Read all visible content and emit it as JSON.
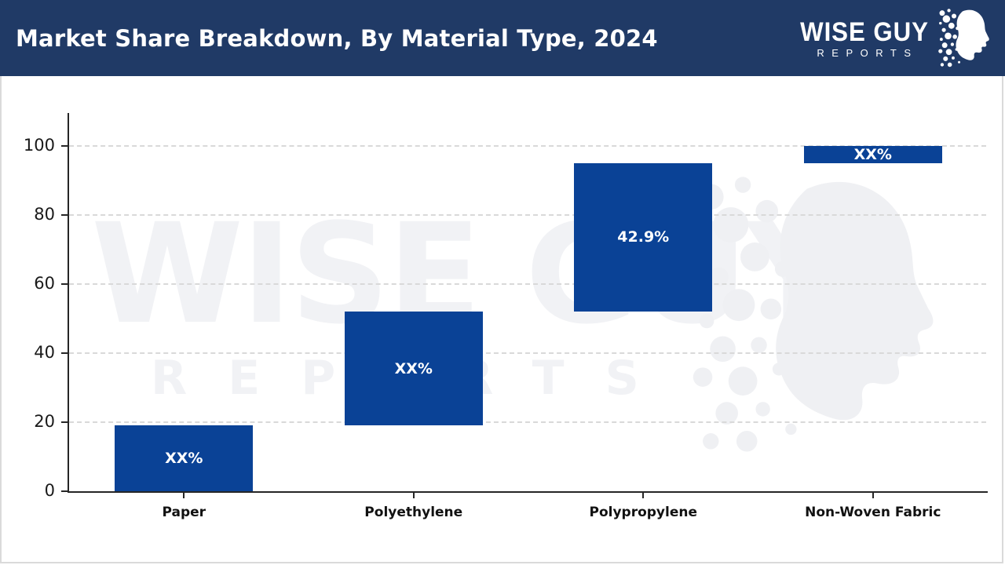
{
  "header": {
    "title": "Market Share Breakdown, By Material Type, 2024",
    "logo": {
      "line1": "WISE GUY",
      "line2": "REPORTS"
    }
  },
  "watermark": {
    "line1": "WISE GUY",
    "line2": "REPORTS"
  },
  "colors": {
    "header_bg": "#203a66",
    "bar_blue": "#0a4296",
    "grid": "#d9d9d9",
    "axis": "#262626",
    "watermark": "#f1f2f5",
    "bar_label_text": "#ffffff"
  },
  "chart_data": {
    "type": "bar",
    "variant": "waterfall-floating-bars",
    "title": "Market Share Breakdown, By Material Type, 2024",
    "unit": "%",
    "categories": [
      "Paper",
      "Polyethylene",
      "Polypropylene",
      "Non-Woven Fabric"
    ],
    "segments": [
      {
        "category": "Paper",
        "start": 0,
        "end": 19,
        "value": 19,
        "label": "XX%"
      },
      {
        "category": "Polyethylene",
        "start": 19,
        "end": 52.1,
        "value": 33.1,
        "label": "XX%"
      },
      {
        "category": "Polypropylene",
        "start": 52.1,
        "end": 95,
        "value": 42.9,
        "label": "42.9%"
      },
      {
        "category": "Non-Woven Fabric",
        "start": 95,
        "end": 100,
        "value": 5,
        "label": "XX%"
      }
    ],
    "yticks": [
      0,
      20,
      40,
      60,
      80,
      100
    ],
    "ylim": [
      0,
      100
    ],
    "xlabel": "",
    "ylabel": "",
    "grid": "horizontal-dashed",
    "legend": "none"
  }
}
